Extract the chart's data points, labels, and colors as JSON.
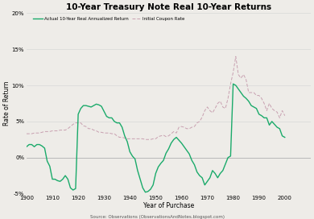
{
  "title": "10-Year Treasury Note Real 10-Year Returns",
  "xlabel": "Year of Purchase",
  "ylabel": "Rate of Return",
  "source": "Source: Observations (ObservationsAndNotes.blogspot.com)",
  "legend1": "Actual 10-Year Real Annualized Return",
  "legend2": "Initial Coupon Rate",
  "ylim": [
    -0.05,
    0.2
  ],
  "yticks": [
    -0.05,
    0.0,
    0.05,
    0.1,
    0.15,
    0.2
  ],
  "ytick_labels": [
    "-5%",
    "0%",
    "5%",
    "10%",
    "15%",
    "20%"
  ],
  "xlim": [
    1900,
    2010
  ],
  "xticks": [
    1900,
    1910,
    1920,
    1930,
    1940,
    1950,
    1960,
    1970,
    1980,
    1990,
    2000
  ],
  "background_color": "#eeece8",
  "line1_color": "#1aaa6a",
  "line2_color": "#c8a0b0",
  "actual_years": [
    1900,
    1901,
    1902,
    1903,
    1904,
    1905,
    1906,
    1907,
    1908,
    1909,
    1910,
    1911,
    1912,
    1913,
    1914,
    1915,
    1916,
    1917,
    1918,
    1919,
    1920,
    1921,
    1922,
    1923,
    1924,
    1925,
    1926,
    1927,
    1928,
    1929,
    1930,
    1931,
    1932,
    1933,
    1934,
    1935,
    1936,
    1937,
    1938,
    1939,
    1940,
    1941,
    1942,
    1943,
    1944,
    1945,
    1946,
    1947,
    1948,
    1949,
    1950,
    1951,
    1952,
    1953,
    1954,
    1955,
    1956,
    1957,
    1958,
    1959,
    1960,
    1961,
    1962,
    1963,
    1964,
    1965,
    1966,
    1967,
    1968,
    1969,
    1970,
    1971,
    1972,
    1973,
    1974,
    1975,
    1976,
    1977,
    1978,
    1979,
    1980,
    1981,
    1982,
    1983,
    1984,
    1985,
    1986,
    1987,
    1988,
    1989,
    1990,
    1991,
    1992,
    1993,
    1994,
    1995,
    1996,
    1997,
    1998,
    1999,
    2000
  ],
  "actual_returns": [
    0.015,
    0.018,
    0.018,
    0.015,
    0.018,
    0.018,
    0.016,
    0.013,
    -0.005,
    -0.012,
    -0.03,
    -0.03,
    -0.032,
    -0.033,
    -0.03,
    -0.025,
    -0.03,
    -0.042,
    -0.045,
    -0.043,
    0.06,
    0.068,
    0.072,
    0.072,
    0.071,
    0.07,
    0.072,
    0.074,
    0.073,
    0.071,
    0.064,
    0.057,
    0.055,
    0.055,
    0.05,
    0.048,
    0.048,
    0.042,
    0.03,
    0.022,
    0.008,
    0.002,
    -0.002,
    -0.018,
    -0.03,
    -0.042,
    -0.048,
    -0.047,
    -0.044,
    -0.038,
    -0.022,
    -0.013,
    -0.008,
    -0.004,
    0.006,
    0.012,
    0.02,
    0.025,
    0.028,
    0.024,
    0.02,
    0.015,
    0.01,
    0.005,
    -0.004,
    -0.01,
    -0.02,
    -0.025,
    -0.028,
    -0.038,
    -0.033,
    -0.028,
    -0.018,
    -0.022,
    -0.028,
    -0.022,
    -0.018,
    -0.009,
    0.0,
    0.002,
    0.102,
    0.1,
    0.095,
    0.09,
    0.085,
    0.082,
    0.078,
    0.072,
    0.07,
    0.068,
    0.06,
    0.058,
    0.055,
    0.055,
    0.045,
    0.05,
    0.046,
    0.042,
    0.04,
    0.03,
    0.028
  ],
  "coupon_years": [
    1900,
    1901,
    1902,
    1903,
    1904,
    1905,
    1906,
    1907,
    1908,
    1909,
    1910,
    1911,
    1912,
    1913,
    1914,
    1915,
    1916,
    1917,
    1918,
    1919,
    1920,
    1921,
    1922,
    1923,
    1924,
    1925,
    1926,
    1927,
    1928,
    1929,
    1930,
    1931,
    1932,
    1933,
    1934,
    1935,
    1936,
    1937,
    1938,
    1939,
    1940,
    1941,
    1942,
    1943,
    1944,
    1945,
    1946,
    1947,
    1948,
    1949,
    1950,
    1951,
    1952,
    1953,
    1954,
    1955,
    1956,
    1957,
    1958,
    1959,
    1960,
    1961,
    1962,
    1963,
    1964,
    1965,
    1966,
    1967,
    1968,
    1969,
    1970,
    1971,
    1972,
    1973,
    1974,
    1975,
    1976,
    1977,
    1978,
    1979,
    1980,
    1981,
    1982,
    1983,
    1984,
    1985,
    1986,
    1987,
    1988,
    1989,
    1990,
    1991,
    1992,
    1993,
    1994,
    1995,
    1996,
    1997,
    1998,
    1999,
    2000
  ],
  "coupon_rates": [
    0.033,
    0.033,
    0.033,
    0.034,
    0.034,
    0.034,
    0.035,
    0.036,
    0.036,
    0.036,
    0.037,
    0.037,
    0.037,
    0.038,
    0.038,
    0.038,
    0.04,
    0.043,
    0.046,
    0.048,
    0.048,
    0.048,
    0.044,
    0.043,
    0.04,
    0.04,
    0.038,
    0.037,
    0.035,
    0.035,
    0.034,
    0.034,
    0.034,
    0.033,
    0.033,
    0.03,
    0.028,
    0.028,
    0.027,
    0.026,
    0.026,
    0.026,
    0.026,
    0.026,
    0.026,
    0.026,
    0.025,
    0.025,
    0.025,
    0.026,
    0.026,
    0.029,
    0.03,
    0.031,
    0.029,
    0.03,
    0.033,
    0.036,
    0.034,
    0.042,
    0.043,
    0.042,
    0.04,
    0.04,
    0.042,
    0.043,
    0.048,
    0.05,
    0.056,
    0.065,
    0.07,
    0.065,
    0.062,
    0.068,
    0.075,
    0.078,
    0.07,
    0.068,
    0.082,
    0.102,
    0.118,
    0.14,
    0.115,
    0.11,
    0.115,
    0.108,
    0.09,
    0.09,
    0.09,
    0.086,
    0.086,
    0.082,
    0.075,
    0.065,
    0.075,
    0.068,
    0.065,
    0.063,
    0.055,
    0.065,
    0.058
  ]
}
